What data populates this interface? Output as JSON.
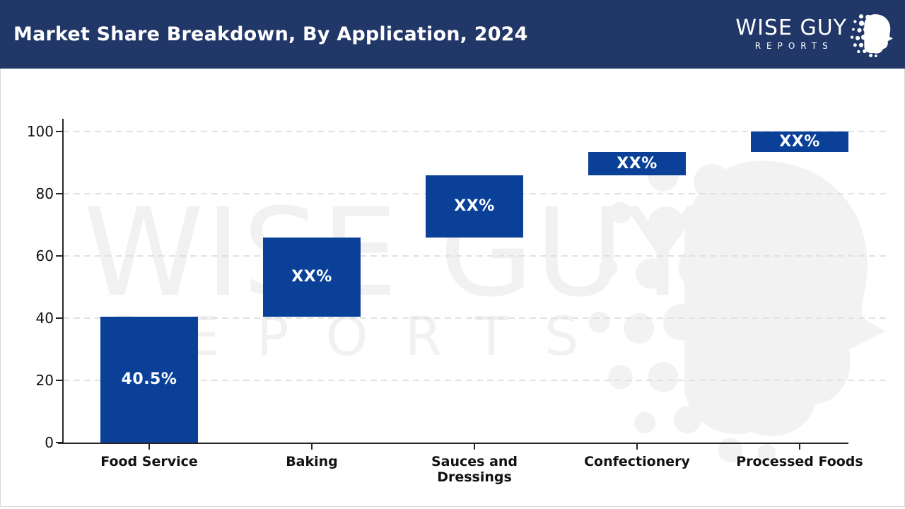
{
  "header": {
    "title": "Market Share Breakdown, By Application, 2024",
    "logo": {
      "line1": "WISE GUY",
      "line2": "REPORTS"
    }
  },
  "watermark": {
    "line1": "WISE GUY",
    "line2": "REPORTS"
  },
  "chart_data": {
    "type": "bar",
    "variant": "waterfall",
    "title": "Market Share Breakdown, By Application, 2024",
    "categories": [
      "Food Service",
      "Baking",
      "Sauces and Dressings",
      "Confectionery",
      "Processed Foods"
    ],
    "category_label_lines": [
      [
        "Food Service"
      ],
      [
        "Baking"
      ],
      [
        "Sauces and",
        "Dressings"
      ],
      [
        "Confectionery"
      ],
      [
        "Processed Foods"
      ]
    ],
    "segments": [
      {
        "category": "Food Service",
        "start": 0,
        "end": 40.5,
        "value": 40.5,
        "label": "40.5%"
      },
      {
        "category": "Baking",
        "start": 40.5,
        "end": 66,
        "value": 25.5,
        "label": "XX%"
      },
      {
        "category": "Sauces and Dressings",
        "start": 66,
        "end": 86,
        "value": 20,
        "label": "XX%"
      },
      {
        "category": "Confectionery",
        "start": 86,
        "end": 93.5,
        "value": 7.5,
        "label": "XX%"
      },
      {
        "category": "Processed Foods",
        "start": 93.5,
        "end": 100,
        "value": 6.5,
        "label": "XX%"
      }
    ],
    "xlabel": "",
    "ylabel": "",
    "yticks": [
      0,
      20,
      40,
      60,
      80,
      100
    ],
    "ylim": [
      0,
      105
    ],
    "grid": {
      "horizontal": true,
      "style": "dashed"
    },
    "legend": null,
    "bar_color": "#0a4098",
    "bar_label_color": "#ffffff"
  },
  "colors": {
    "header_bg": "#213768",
    "bar": "#0a4098",
    "gridline": "#e1e1e1",
    "axis": "#262626",
    "tick_text": "#111111",
    "watermark": "#f1f1f1",
    "border": "#d9d9d9"
  }
}
